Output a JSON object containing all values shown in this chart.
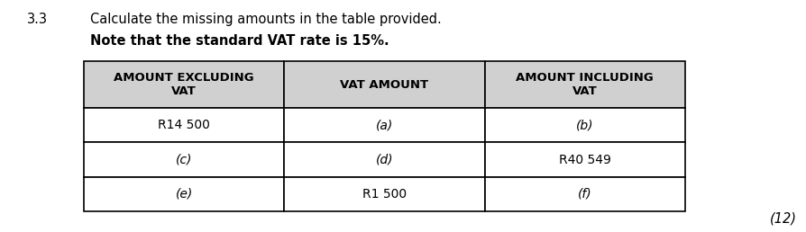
{
  "title_number": "3.3",
  "title_text": "Calculate the missing amounts in the table provided.",
  "subtitle_text": "Note that the standard VAT rate is 15%.",
  "col_headers": [
    "AMOUNT EXCLUDING\nVAT",
    "VAT AMOUNT",
    "AMOUNT INCLUDING\nVAT"
  ],
  "rows": [
    [
      "R14 500",
      "(a)",
      "(b)"
    ],
    [
      "(c)",
      "(d)",
      "R40 549"
    ],
    [
      "(e)",
      "R1 500",
      "(f)"
    ]
  ],
  "header_bg": "#d0d0d0",
  "row_bg": "#ffffff",
  "border_color": "#000000",
  "text_color": "#000000",
  "marks_text": "(12)",
  "fig_width": 8.94,
  "fig_height": 2.58,
  "dpi": 100
}
